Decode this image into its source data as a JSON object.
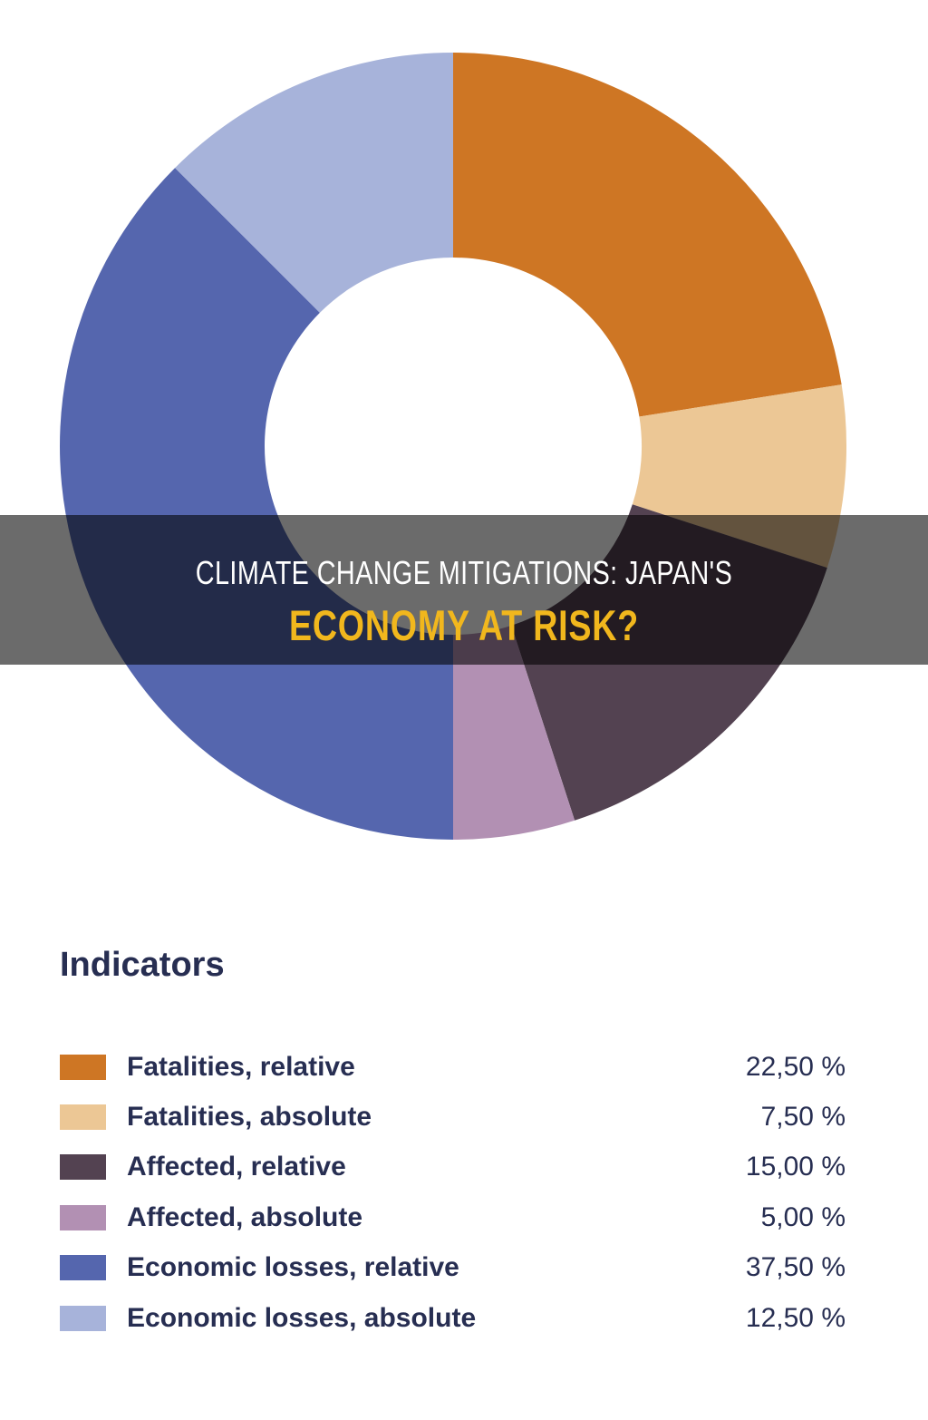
{
  "page": {
    "background": "#ffffff",
    "text_color": "#272e52"
  },
  "banner": {
    "line1": "CLIMATE CHANGE MITIGATIONS: JAPAN'S",
    "line2": "ECONOMY AT RISK?",
    "line1_color": "#ffffff",
    "line2_color": "#f1b71d",
    "overlay_color": "rgba(0, 0, 0, 0.58)"
  },
  "legend": {
    "heading": "Indicators",
    "text_color": "#272e52"
  },
  "chart_data": {
    "type": "pie",
    "subtype": "donut",
    "title": "Indicators",
    "start_angle_deg": 0,
    "direction": "clockwise",
    "hole_ratio": 0.48,
    "hole_color": "#ffffff",
    "legend_position": "bottom-left",
    "segments": [
      {
        "label": "Fatalities, relative",
        "value": 22.5,
        "display": "22,50 %",
        "color": "#ce7624"
      },
      {
        "label": "Fatalities, absolute",
        "value": 7.5,
        "display": "7,50 %",
        "color": "#ecc795"
      },
      {
        "label": "Affected, relative",
        "value": 15.0,
        "display": "15,00 %",
        "color": "#534251"
      },
      {
        "label": "Affected, absolute",
        "value": 5.0,
        "display": "5,00 %",
        "color": "#b290b3"
      },
      {
        "label": "Economic losses, relative",
        "value": 37.5,
        "display": "37,50 %",
        "color": "#5566ae"
      },
      {
        "label": "Economic losses, absolute",
        "value": 12.5,
        "display": "12,50 %",
        "color": "#a7b3da"
      }
    ]
  }
}
